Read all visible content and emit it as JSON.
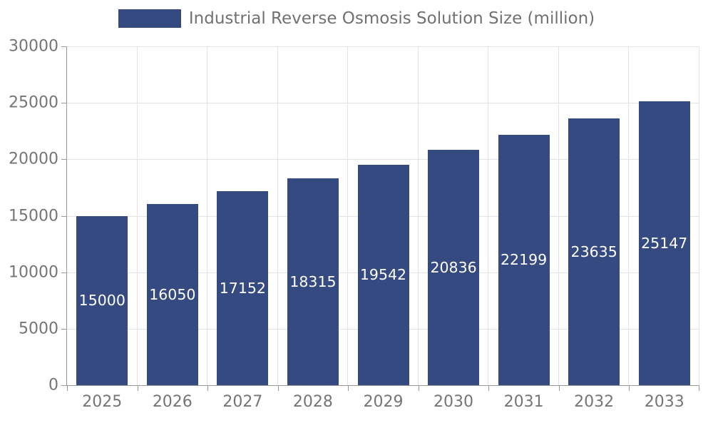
{
  "legend": {
    "label": "Industrial Reverse Osmosis Solution Size (million)"
  },
  "chart_data": {
    "type": "bar",
    "title": "Industrial Reverse Osmosis Solution Size (million)",
    "categories": [
      "2025",
      "2026",
      "2027",
      "2028",
      "2029",
      "2030",
      "2031",
      "2032",
      "2033"
    ],
    "values": [
      15000,
      16050,
      17152,
      18315,
      19542,
      20836,
      22199,
      23635,
      25147
    ],
    "xlabel": "",
    "ylabel": "",
    "ylim": [
      0,
      30000
    ],
    "yticks": [
      0,
      5000,
      10000,
      15000,
      20000,
      25000,
      30000
    ],
    "grid": "both",
    "legend_position": "top",
    "value_labels": "inside-center",
    "colors": {
      "bar": "#364a82",
      "bar_label_text": "#ffffff",
      "axis_text": "#757575",
      "legend_text": "#717171",
      "grid_line": "#e4e4e4",
      "axis_line": "#9a9a9a",
      "background": "#ffffff"
    }
  }
}
